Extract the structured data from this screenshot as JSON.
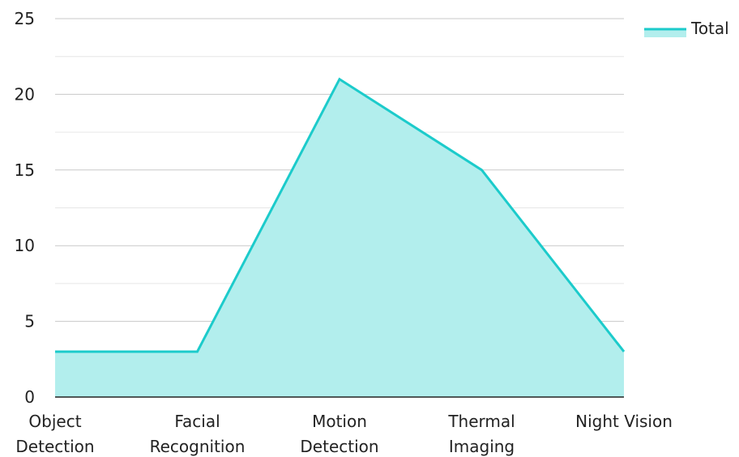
{
  "chart_data": {
    "type": "area",
    "categories": [
      [
        "Object",
        "Detection"
      ],
      [
        "Facial",
        "Recognition"
      ],
      [
        "Motion",
        "Detection"
      ],
      [
        "Thermal",
        "Imaging"
      ],
      [
        "Night Vision"
      ]
    ],
    "series": [
      {
        "name": "Total",
        "values": [
          3,
          3,
          21,
          15,
          3
        ]
      }
    ],
    "ylim": [
      0,
      25
    ],
    "yticks": [
      "0",
      "5",
      "10",
      "15",
      "20",
      "25"
    ],
    "grid": true,
    "legend": "top-right",
    "colors": {
      "line": "#1ccbcb",
      "fill": "#b2eeed",
      "grid": "#c8c8c8",
      "minor_grid": "#e6e6e6",
      "axis": "#222222"
    }
  }
}
